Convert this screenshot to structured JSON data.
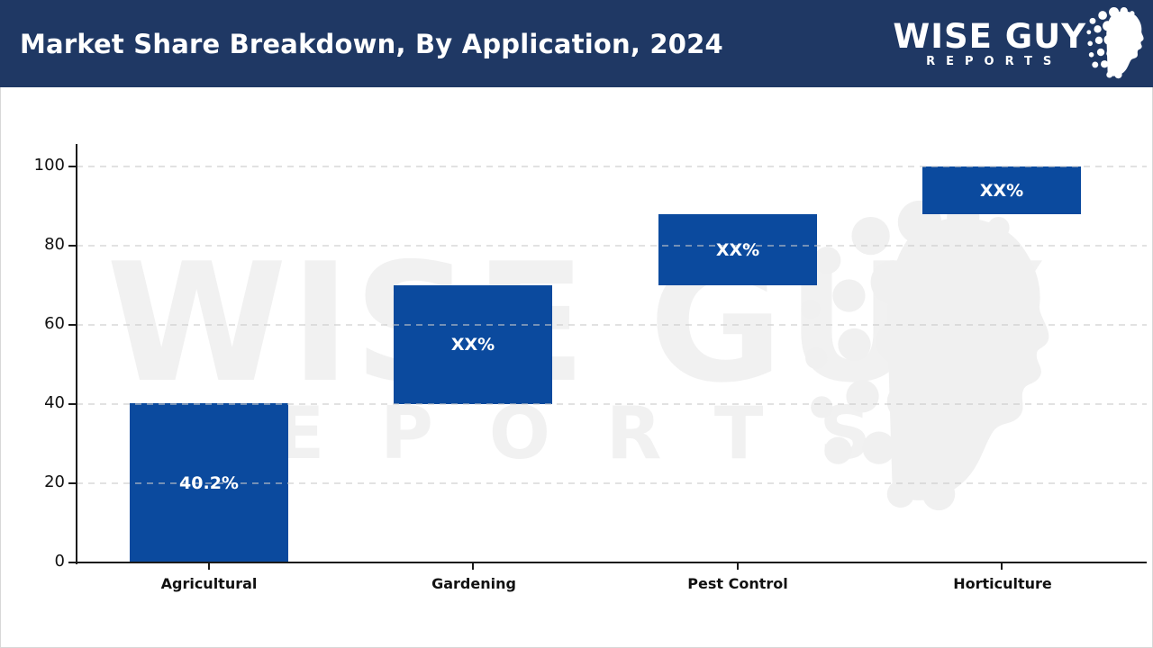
{
  "header": {
    "title": "Market Share Breakdown, By Application, 2024",
    "logo": {
      "line1": "WISE GUY",
      "line2": "REPORTS"
    }
  },
  "watermark": {
    "line1": "WISE GUY",
    "line2": "REPORTS"
  },
  "chart_data": {
    "type": "bar",
    "variant": "floating-segment-waterfall",
    "title": "Market Share Breakdown, By Application, 2024",
    "categories": [
      "Agricultural",
      "Gardening",
      "Pest Control",
      "Horticulture"
    ],
    "series": [
      {
        "name": "Market share (%)",
        "segments": [
          {
            "category": "Agricultural",
            "start": 0,
            "end": 40.2,
            "label": "40.2%"
          },
          {
            "category": "Gardening",
            "start": 40,
            "end": 70,
            "label": "XX%"
          },
          {
            "category": "Pest Control",
            "start": 70,
            "end": 88,
            "label": "XX%"
          },
          {
            "category": "Horticulture",
            "start": 88,
            "end": 100,
            "label": "XX%"
          }
        ]
      }
    ],
    "xlabel": "",
    "ylabel": "",
    "ylim": [
      0,
      105.7
    ],
    "yticks": [
      0,
      20,
      40,
      60,
      80,
      100
    ],
    "grid": "horizontal-dashed",
    "legend": "none",
    "bar_color": "#0B4A9E",
    "bar_label_color": "#FFFFFF",
    "axis_color": "#1A1A1A"
  },
  "colors": {
    "header_bg": "#1F3864",
    "page_bg": "#FFFFFF",
    "watermark": "#F1F1F1",
    "gridline": "#DCDCDC"
  }
}
